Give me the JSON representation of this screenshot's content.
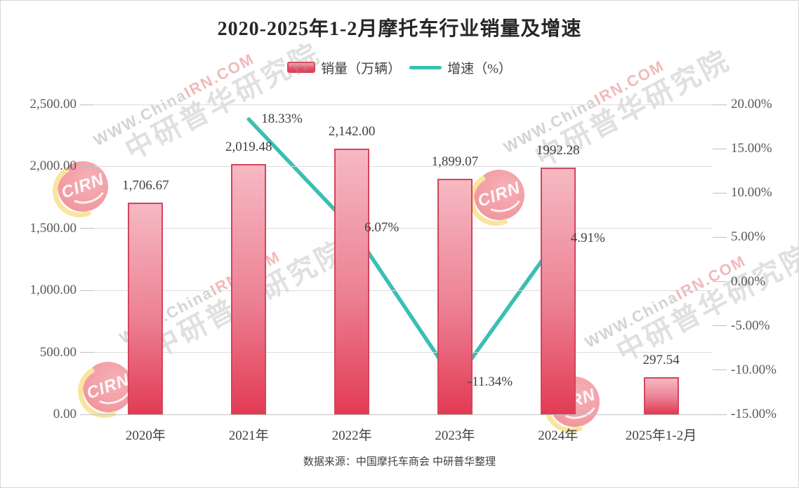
{
  "title": "2020-2025年1-2月摩托车行业销量及增速",
  "legend": {
    "sales_label": "销量（万辆）",
    "growth_label": "增速（%）"
  },
  "source": "数据来源：中国摩托车商会 中研普华整理",
  "watermark": {
    "badge": "CIRN",
    "site_prefix": "WWW.China",
    "site_mid": "IRN",
    "site_suffix": ".COM",
    "org": "中研普华研究院"
  },
  "colors": {
    "bar_fill_top": "#F6B9C3",
    "bar_fill_bottom": "#E23C54",
    "bar_border": "#D5445C",
    "line": "#3ABFB2",
    "grid": "#DCDCDC",
    "axis_text": "#595959",
    "label_text": "#3F3F3F"
  },
  "chart_data": {
    "type": "bar+line",
    "title": "2020-2025年1-2月摩托车行业销量及增速",
    "categories": [
      "2020年",
      "2021年",
      "2022年",
      "2023年",
      "2024年",
      "2025年1-2月"
    ],
    "series": [
      {
        "name": "销量（万辆）",
        "type": "bar",
        "axis": "left",
        "values": [
          1706.67,
          2019.48,
          2142.0,
          1899.07,
          1992.28,
          297.54
        ],
        "labels": [
          "1,706.67",
          "2,019.48",
          "2,142.00",
          "1,899.07",
          "1992.28",
          "297.54"
        ]
      },
      {
        "name": "增速（%）",
        "type": "line",
        "axis": "right",
        "values": [
          null,
          18.33,
          6.07,
          -11.34,
          4.91,
          null
        ],
        "labels": [
          null,
          "18.33%",
          "6.07%",
          "-11.34%",
          "4.91%",
          null
        ]
      }
    ],
    "left_axis": {
      "min": 0,
      "max": 2500,
      "ticks": [
        "2,500.00",
        "2,000.00",
        "1,500.00",
        "1,000.00",
        "500.00",
        "0.00"
      ]
    },
    "right_axis": {
      "min": -15,
      "max": 20,
      "ticks": [
        "20.00%",
        "15.00%",
        "10.00%",
        "5.00%",
        "0.00%",
        "-5.00%",
        "-10.00%",
        "-15.00%"
      ]
    },
    "grid": true,
    "legend_position": "top"
  }
}
